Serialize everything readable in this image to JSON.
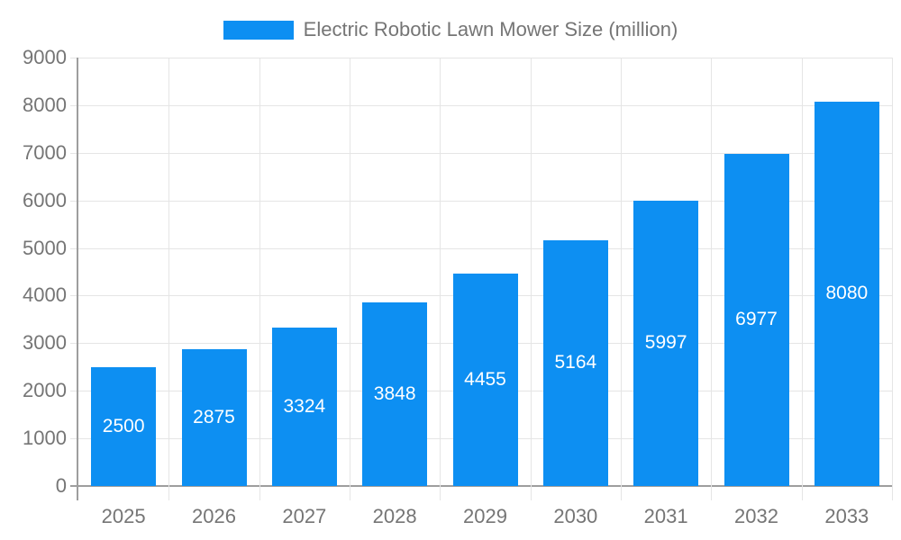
{
  "chart_data": {
    "type": "bar",
    "title": "Electric Robotic Lawn Mower Size (million)",
    "series_name": "Electric Robotic Lawn Mower Size (million)",
    "categories": [
      "2025",
      "2026",
      "2027",
      "2028",
      "2029",
      "2030",
      "2031",
      "2032",
      "2033"
    ],
    "values": [
      2500,
      2875,
      3324,
      3848,
      4455,
      5164,
      5997,
      6977,
      8080
    ],
    "value_labels": [
      "2500",
      "2875",
      "3324",
      "3848",
      "4455",
      "5164",
      "5997",
      "6977",
      "8080"
    ],
    "xlabel": "",
    "ylabel": "",
    "ylim": [
      0,
      9000
    ],
    "ytick_step": 1000,
    "ytick_labels": [
      "0",
      "1000",
      "2000",
      "3000",
      "4000",
      "5000",
      "6000",
      "7000",
      "8000",
      "9000"
    ],
    "grid": true,
    "legend_position": "top",
    "colors": {
      "bar": "#0d8ff2",
      "axis_text": "#757575",
      "value_text": "#ffffff",
      "gridline": "#e5e5e5",
      "axis_line": "#9e9e9e",
      "background": "#ffffff"
    }
  }
}
